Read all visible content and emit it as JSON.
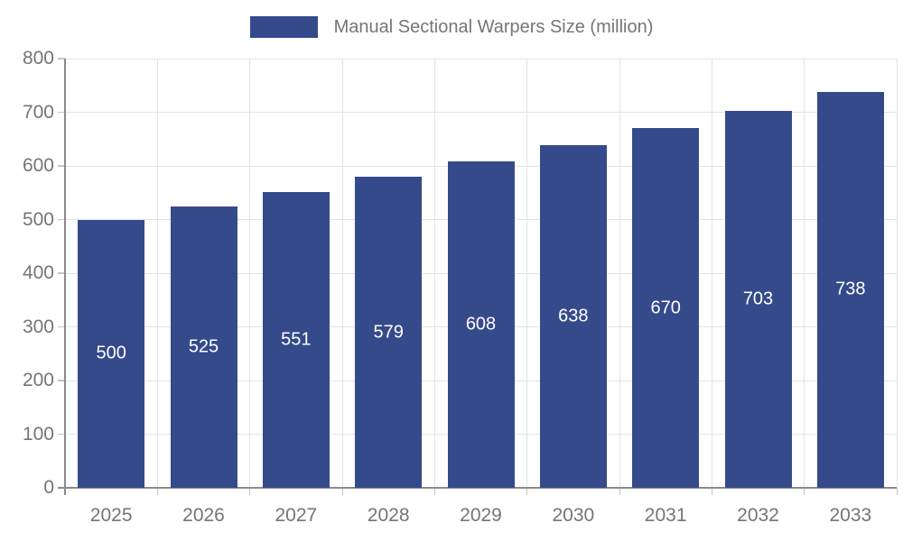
{
  "legend": {
    "label": "Manual Sectional Warpers Size (million)"
  },
  "chart_data": {
    "type": "bar",
    "title": "Manual Sectional Warpers Size (million)",
    "categories": [
      "2025",
      "2026",
      "2027",
      "2028",
      "2029",
      "2030",
      "2031",
      "2032",
      "2033"
    ],
    "values": [
      500,
      525,
      551,
      579,
      608,
      638,
      670,
      703,
      738
    ],
    "xlabel": "",
    "ylabel": "",
    "ylim": [
      0,
      800
    ],
    "ytick_step": 100,
    "yticks": [
      0,
      100,
      200,
      300,
      400,
      500,
      600,
      700,
      800
    ],
    "grid": true,
    "legend_position": "top-center",
    "bar_labels_inside": true,
    "colors": {
      "bar": "#354a8b",
      "bar_label": "#ffffff",
      "axis": "#8a8a8a",
      "gridline": "#e3e3e3",
      "tick": "#c4c4c4",
      "text": "#757575"
    }
  }
}
